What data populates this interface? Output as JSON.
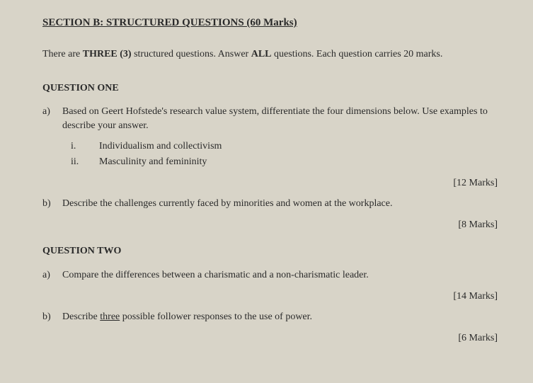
{
  "section": {
    "header": "SECTION B: STRUCTURED QUESTIONS (60 Marks)"
  },
  "instructions": {
    "prefix": "There are ",
    "count": "THREE (3)",
    "mid": " structured questions. Answer ",
    "all": "ALL",
    "suffix": " questions.  Each question carries 20 marks."
  },
  "q1": {
    "heading": "QUESTION ONE",
    "a": {
      "label": "a)",
      "text": "Based on Geert Hofstede's research value system, differentiate the four  dimensions below. Use examples to describe your answer.",
      "items": [
        {
          "label": "i.",
          "text": "Individualism and collectivism"
        },
        {
          "label": "ii.",
          "text": "Masculinity and femininity"
        }
      ],
      "marks": "[12 Marks]"
    },
    "b": {
      "label": "b)",
      "text": "Describe the challenges currently faced by minorities and women at the workplace.",
      "marks": "[8 Marks]"
    }
  },
  "q2": {
    "heading": "QUESTION TWO",
    "a": {
      "label": "a)",
      "text_pre": "Compare the differences between a charismatic and ",
      "text_post": "non-charismatic leader.",
      "marks": "[14 Marks]"
    },
    "b": {
      "label": "b)",
      "text_pre": "Describe ",
      "underlined": "three",
      "text_post": " possible follower responses to the use of power.",
      "marks": "[6 Marks]"
    }
  }
}
